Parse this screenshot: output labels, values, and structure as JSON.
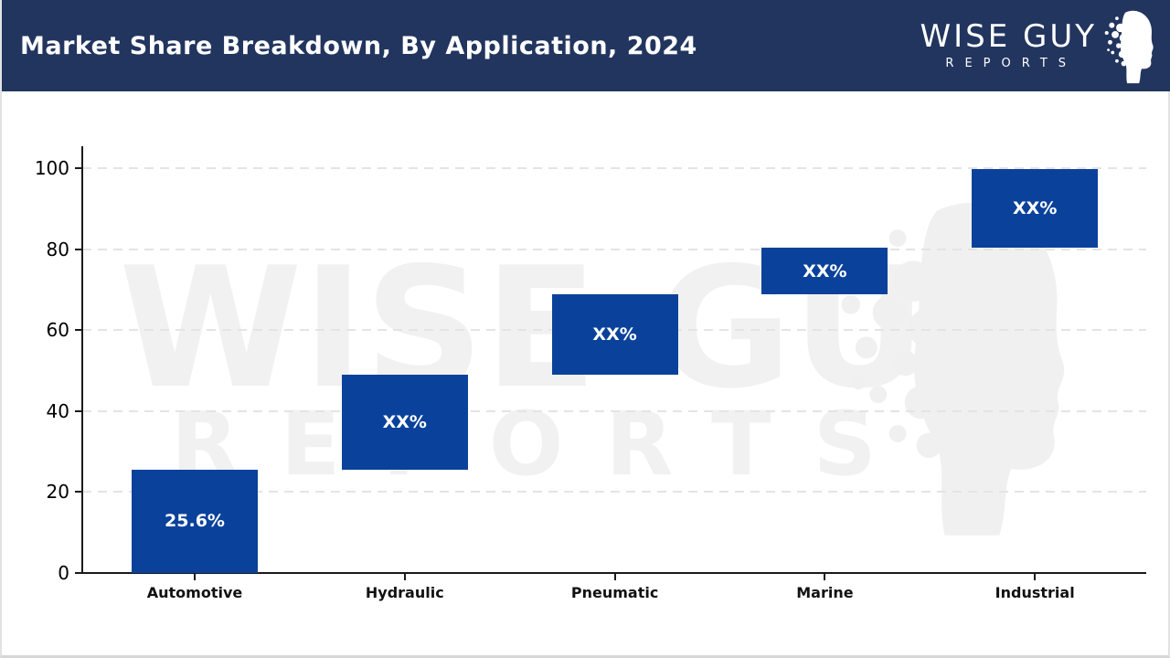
{
  "header": {
    "title": "Market Share Breakdown, By Application, 2024",
    "bg_color": "#22355f",
    "logo": {
      "line1": "WISE GUY",
      "line2": "REPORTS"
    }
  },
  "watermark": {
    "line1": "WISE GUY",
    "line2": "REPORTS",
    "color": "#f1f1f1"
  },
  "chart_data": {
    "type": "bar",
    "subtype": "waterfall",
    "title": "Market Share Breakdown, By Application, 2024",
    "categories": [
      "Automotive",
      "Hydraulic",
      "Pneumatic",
      "Marine",
      "Industrial"
    ],
    "segments": [
      {
        "category": "Automotive",
        "start": 0,
        "end": 25.6,
        "label": "25.6%"
      },
      {
        "category": "Hydraulic",
        "start": 25.6,
        "end": 49.1,
        "label": "XX%"
      },
      {
        "category": "Pneumatic",
        "start": 49.1,
        "end": 68.8,
        "label": "XX%"
      },
      {
        "category": "Marine",
        "start": 68.8,
        "end": 80.4,
        "label": "XX%"
      },
      {
        "category": "Industrial",
        "start": 80.4,
        "end": 99.8,
        "label": "XX%"
      }
    ],
    "yticks": [
      0,
      20,
      40,
      60,
      80,
      100
    ],
    "ylim": [
      0,
      105
    ],
    "xlabel": "",
    "ylabel": "",
    "grid": "horizontal-dashed",
    "legend": "none",
    "bar_color": "#0a429b",
    "bar_label_color": "#ffffff",
    "axis_color": "#1a1a1a",
    "grid_color": "#e4e4e4"
  }
}
